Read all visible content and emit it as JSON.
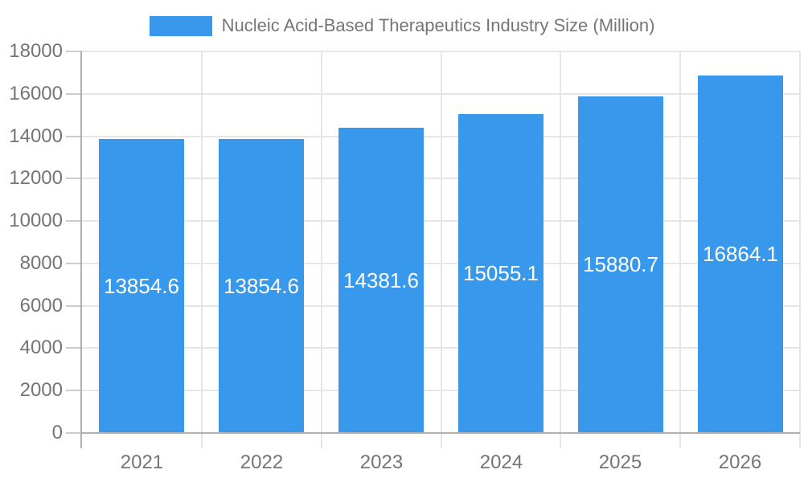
{
  "chart_data": {
    "type": "bar",
    "title": "Nucleic Acid-Based Therapeutics Industry Size (Million)",
    "categories": [
      "2021",
      "2022",
      "2023",
      "2024",
      "2025",
      "2026"
    ],
    "values": [
      13854.6,
      13854.6,
      14381.6,
      15055.1,
      15880.7,
      16864.1
    ],
    "value_labels": [
      "13854.6",
      "13854.6",
      "14381.6",
      "15055.1",
      "15880.7",
      "16864.1"
    ],
    "xlabel": "",
    "ylabel": "",
    "ylim": [
      0,
      18000
    ],
    "ytick_step": 2000,
    "ytick_labels": [
      "0",
      "2000",
      "4000",
      "6000",
      "8000",
      "10000",
      "12000",
      "14000",
      "16000",
      "18000"
    ],
    "grid": true,
    "legend_position": "top",
    "value_label_position": "center-inside",
    "colors": {
      "bar": "#3899EC",
      "value_text": "#FFFFFF",
      "tick_text": "#757575",
      "legend_text": "#757575",
      "grid": "#E6E6E6",
      "tick": "#CCCCCC",
      "axis": "#B0B0B0",
      "background": "#FFFFFF"
    }
  }
}
